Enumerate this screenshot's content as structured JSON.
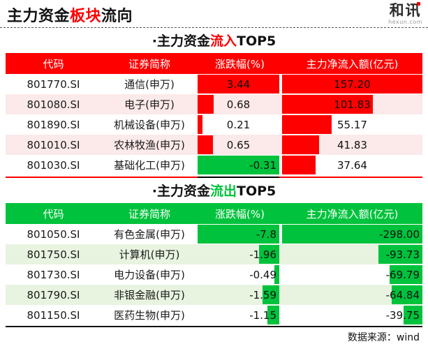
{
  "page": {
    "title": {
      "part1": "主力资金",
      "part2": "板块",
      "part3": "流向"
    },
    "logo": {
      "text": "和讯",
      "domain": "hexun.com"
    },
    "footer": {
      "source_label": "数据来源：wind"
    }
  },
  "colors": {
    "red": "#FF0000",
    "green": "#00C23C",
    "inflow_row_tint": "#FCE9E9",
    "outflow_row_tint": "#E8F3E0"
  },
  "chart_data": [
    {
      "type": "table",
      "title": {
        "prefix": "·主力资金",
        "highlight": "流入",
        "suffix": "TOP5"
      },
      "highlight_color": "#FF0000",
      "columns": [
        "代码",
        "证券简称",
        "涨跌幅(%)",
        "主力净流入额(亿元)"
      ],
      "bar_anchor": "left",
      "rows": [
        {
          "code": "801770.SI",
          "name": "通信(申万)",
          "pct": 3.44,
          "pct_display": "3.44",
          "flow": 157.2,
          "flow_display": "157.20"
        },
        {
          "code": "801080.SI",
          "name": "电子(申万)",
          "pct": 0.68,
          "pct_display": "0.68",
          "flow": 101.83,
          "flow_display": "101.83"
        },
        {
          "code": "801890.SI",
          "name": "机械设备(申万)",
          "pct": 0.21,
          "pct_display": "0.21",
          "flow": 55.17,
          "flow_display": "55.17"
        },
        {
          "code": "801010.SI",
          "name": "农林牧渔(申万)",
          "pct": 0.65,
          "pct_display": "0.65",
          "flow": 41.83,
          "flow_display": "41.83"
        },
        {
          "code": "801030.SI",
          "name": "基础化工(申万)",
          "pct": -0.31,
          "pct_display": "-0.31",
          "flow": 37.64,
          "flow_display": "37.64"
        }
      ]
    },
    {
      "type": "table",
      "title": {
        "prefix": "·主力资金",
        "highlight": "流出",
        "suffix": "TOP5"
      },
      "highlight_color": "#00C23C",
      "columns": [
        "代码",
        "证券简称",
        "涨跌幅(%)",
        "主力净流入额(亿元)"
      ],
      "bar_anchor": "right",
      "rows": [
        {
          "code": "801050.SI",
          "name": "有色金属(申万)",
          "pct": -7.8,
          "pct_display": "-7.8",
          "flow": -298.0,
          "flow_display": "-298.00"
        },
        {
          "code": "801750.SI",
          "name": "计算机(申万)",
          "pct": -1.96,
          "pct_display": "-1.96",
          "flow": -93.73,
          "flow_display": "-93.73"
        },
        {
          "code": "801730.SI",
          "name": "电力设备(申万)",
          "pct": -0.49,
          "pct_display": "-0.49",
          "flow": -69.79,
          "flow_display": "-69.79"
        },
        {
          "code": "801790.SI",
          "name": "非银金融(申万)",
          "pct": -1.59,
          "pct_display": "-1.59",
          "flow": -64.84,
          "flow_display": "-64.84"
        },
        {
          "code": "801150.SI",
          "name": "医药生物(申万)",
          "pct": -1.15,
          "pct_display": "-1.15",
          "flow": -39.75,
          "flow_display": "-39.75"
        }
      ]
    }
  ]
}
